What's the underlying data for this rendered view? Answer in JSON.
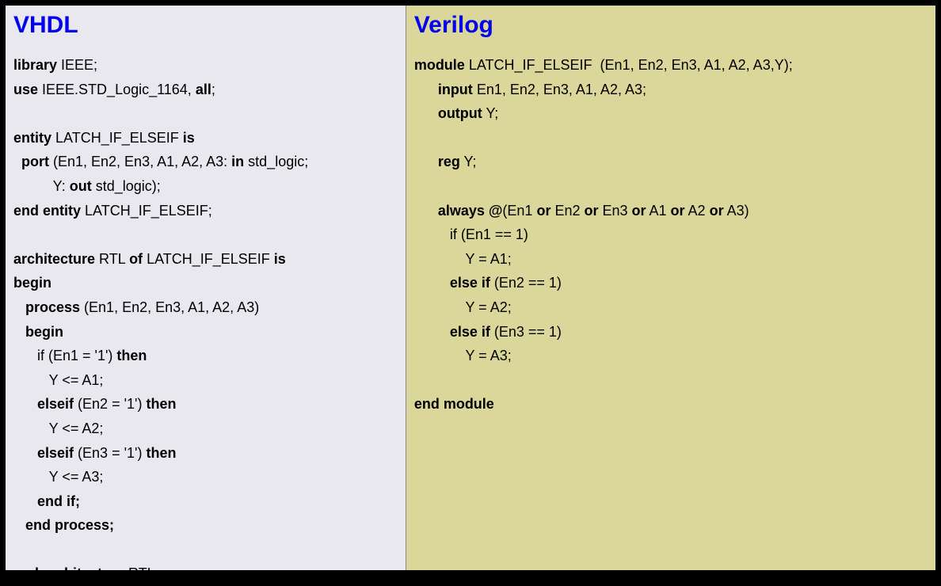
{
  "left": {
    "heading": "VHDL",
    "background_color": "#e8e8ee",
    "lines": [
      [
        {
          "t": "library",
          "b": true
        },
        {
          "t": " IEEE;",
          "b": false
        }
      ],
      [
        {
          "t": "use",
          "b": true
        },
        {
          "t": " IEEE.STD_Logic_1164, ",
          "b": false
        },
        {
          "t": "all",
          "b": true
        },
        {
          "t": ";",
          "b": false
        }
      ],
      [],
      [
        {
          "t": "entity",
          "b": true
        },
        {
          "t": " LATCH_IF_ELSEIF ",
          "b": false
        },
        {
          "t": "is",
          "b": true
        }
      ],
      [
        {
          "t": "  port",
          "b": true
        },
        {
          "t": " (En1, En2, En3, A1, A2, A3: ",
          "b": false
        },
        {
          "t": "in",
          "b": true
        },
        {
          "t": " std_logic;",
          "b": false
        }
      ],
      [
        {
          "t": "          Y: ",
          "b": false
        },
        {
          "t": "out",
          "b": true
        },
        {
          "t": " std_logic);",
          "b": false
        }
      ],
      [
        {
          "t": "end entity",
          "b": true
        },
        {
          "t": " LATCH_IF_ELSEIF;",
          "b": false
        }
      ],
      [],
      [
        {
          "t": "architecture",
          "b": true
        },
        {
          "t": " RTL ",
          "b": false
        },
        {
          "t": "of",
          "b": true
        },
        {
          "t": " LATCH_IF_ELSEIF ",
          "b": false
        },
        {
          "t": "is",
          "b": true
        }
      ],
      [
        {
          "t": "begin",
          "b": true
        }
      ],
      [
        {
          "t": "   process",
          "b": true
        },
        {
          "t": " (En1, En2, En3, A1, A2, A3)",
          "b": false
        }
      ],
      [
        {
          "t": "   begin",
          "b": true
        }
      ],
      [
        {
          "t": "      if (En1 = '1') ",
          "b": false
        },
        {
          "t": "then",
          "b": true
        }
      ],
      [
        {
          "t": "         Y <= A1;",
          "b": false
        }
      ],
      [
        {
          "t": "      elseif",
          "b": true
        },
        {
          "t": " (En2 = '1') ",
          "b": false
        },
        {
          "t": "then",
          "b": true
        }
      ],
      [
        {
          "t": "         Y <= A2;",
          "b": false
        }
      ],
      [
        {
          "t": "      elseif",
          "b": true
        },
        {
          "t": " (En3 = '1') ",
          "b": false
        },
        {
          "t": "then",
          "b": true
        }
      ],
      [
        {
          "t": "         Y <= A3;",
          "b": false
        }
      ],
      [
        {
          "t": "      end if;",
          "b": true
        }
      ],
      [
        {
          "t": "   end process;",
          "b": true
        }
      ],
      [],
      [
        {
          "t": "end architecture",
          "b": true
        },
        {
          "t": " RTL;",
          "b": false
        }
      ]
    ]
  },
  "right": {
    "heading": "Verilog",
    "background_color": "#dbd69a",
    "lines": [
      [
        {
          "t": "module",
          "b": true
        },
        {
          "t": " LATCH_IF_ELSEIF  (En1, En2, En3, A1, A2, A3,Y);",
          "b": false
        }
      ],
      [
        {
          "t": "      input",
          "b": true
        },
        {
          "t": " En1, En2, En3, A1, A2, A3;",
          "b": false
        }
      ],
      [
        {
          "t": "      output",
          "b": true
        },
        {
          "t": " Y;",
          "b": false
        }
      ],
      [],
      [
        {
          "t": "      reg",
          "b": true
        },
        {
          "t": " Y;",
          "b": false
        }
      ],
      [],
      [
        {
          "t": "      always @",
          "b": true
        },
        {
          "t": "(En1 ",
          "b": false
        },
        {
          "t": "or",
          "b": true
        },
        {
          "t": " En2 ",
          "b": false
        },
        {
          "t": "or",
          "b": true
        },
        {
          "t": " En3 ",
          "b": false
        },
        {
          "t": "or",
          "b": true
        },
        {
          "t": " A1 ",
          "b": false
        },
        {
          "t": "or",
          "b": true
        },
        {
          "t": " A2 ",
          "b": false
        },
        {
          "t": "or",
          "b": true
        },
        {
          "t": " A3)",
          "b": false
        }
      ],
      [
        {
          "t": "         if (En1 == 1)",
          "b": false
        }
      ],
      [
        {
          "t": "             Y = A1;",
          "b": false
        }
      ],
      [
        {
          "t": "         ",
          "b": false
        },
        {
          "t": "else if",
          "b": true
        },
        {
          "t": " (En2 == 1)",
          "b": false
        }
      ],
      [
        {
          "t": "             Y = A2;",
          "b": false
        }
      ],
      [
        {
          "t": "         ",
          "b": false
        },
        {
          "t": "else if",
          "b": true
        },
        {
          "t": " (En3 == 1)",
          "b": false
        }
      ],
      [
        {
          "t": "             Y = A3;",
          "b": false
        }
      ],
      [],
      [
        {
          "t": "end module",
          "b": true
        }
      ]
    ]
  },
  "styling": {
    "heading_color": "#0000ee",
    "heading_fontsize": 30,
    "code_fontsize": 18,
    "code_lineheight": 1.7,
    "text_color": "#000000",
    "outer_background": "#000000",
    "font_family": "Arial, Helvetica, sans-serif"
  }
}
